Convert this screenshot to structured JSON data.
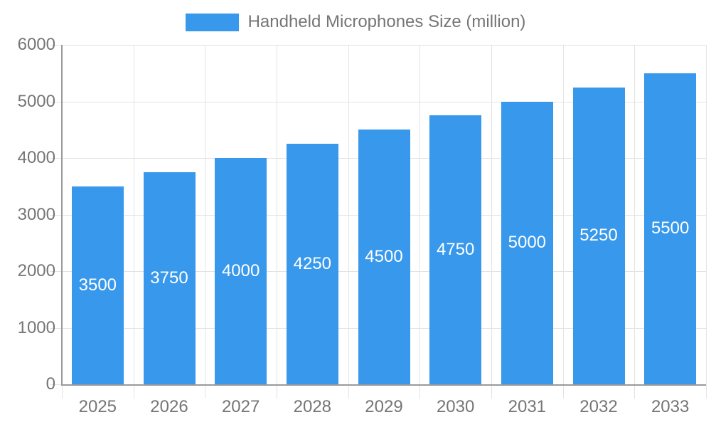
{
  "chart_data": {
    "type": "bar",
    "title": "Handheld Microphones Size (million)",
    "legend": [
      "Handheld Microphones Size (million)"
    ],
    "legend_position": "top-center",
    "categories": [
      "2025",
      "2026",
      "2027",
      "2028",
      "2029",
      "2030",
      "2031",
      "2032",
      "2033"
    ],
    "series": [
      {
        "name": "Handheld Microphones Size (million)",
        "values": [
          3500,
          3750,
          4000,
          4250,
          4500,
          4750,
          5000,
          5250,
          5500
        ]
      }
    ],
    "bar_labels": [
      "3500",
      "3750",
      "4000",
      "4250",
      "4500",
      "4750",
      "5000",
      "5250",
      "5500"
    ],
    "xlabel": "",
    "ylabel": "",
    "ylim": [
      0,
      6000
    ],
    "ytick_step": 1000,
    "ytick_labels": [
      "0",
      "1000",
      "2000",
      "3000",
      "4000",
      "5000",
      "6000"
    ],
    "grid": true,
    "colors": {
      "bar": "#3898EC",
      "bar_label_text": "#ffffff",
      "axis_text": "#757575",
      "axis_line": "#9a9a9a",
      "gridline": "#e3e3e3",
      "background": "#ffffff"
    }
  }
}
